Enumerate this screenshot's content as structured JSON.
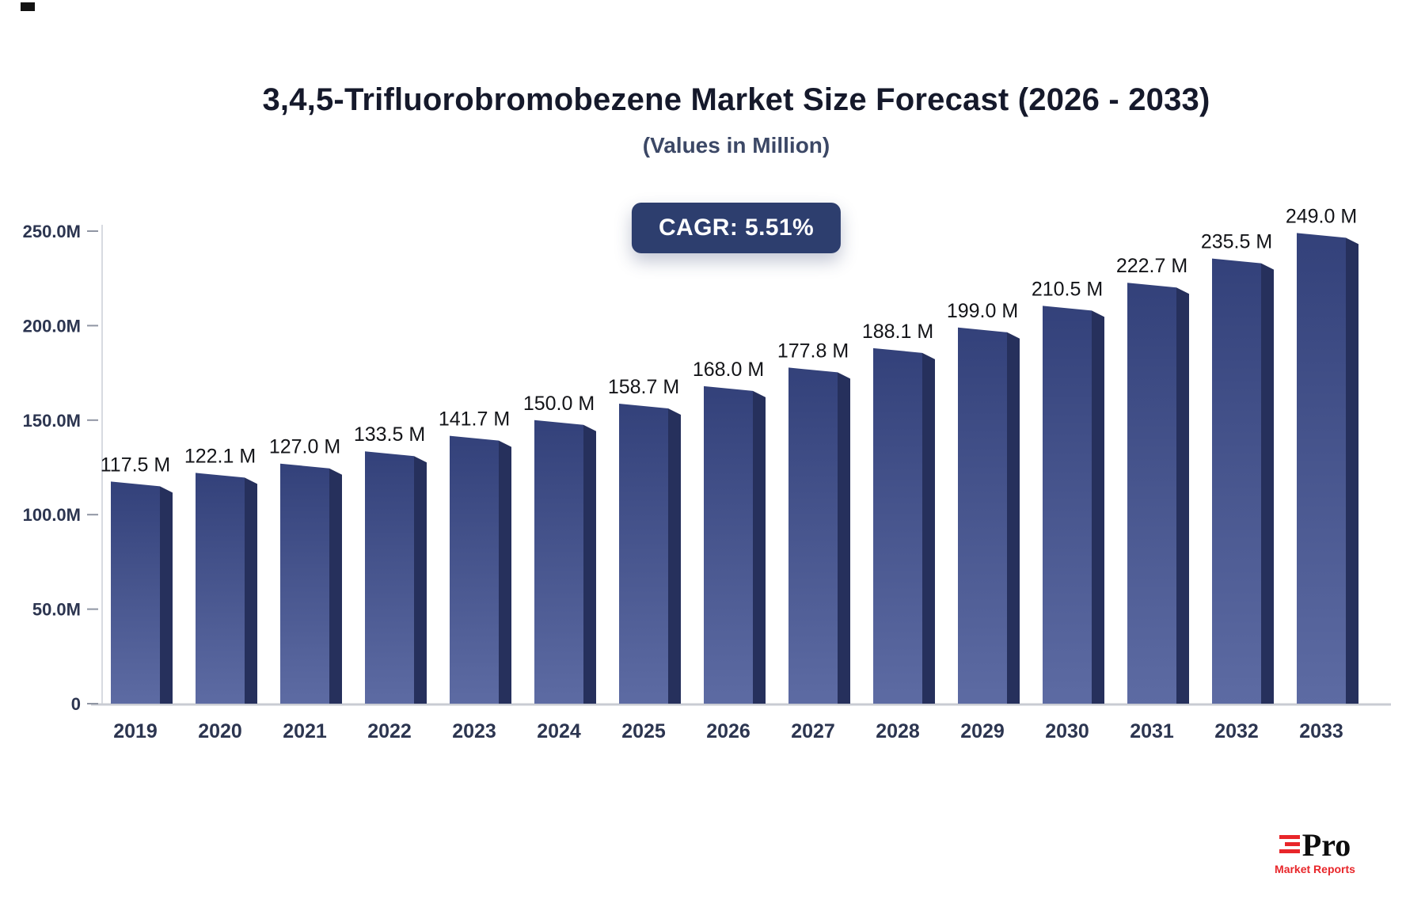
{
  "chart_data": {
    "type": "bar",
    "title": "3,4,5-Trifluorobromobezene Market Size Forecast (2026 - 2033)",
    "subtitle": "(Values in Million)",
    "cagr_label": "CAGR: 5.51%",
    "categories": [
      "2019",
      "2020",
      "2021",
      "2022",
      "2023",
      "2024",
      "2025",
      "2026",
      "2027",
      "2028",
      "2029",
      "2030",
      "2031",
      "2032",
      "2033"
    ],
    "values": [
      117.5,
      122.1,
      127.0,
      133.5,
      141.7,
      150.0,
      158.7,
      168.0,
      177.8,
      188.1,
      199.0,
      210.5,
      222.7,
      235.5,
      249.0
    ],
    "value_labels": [
      "117.5 M",
      "122.1 M",
      "127.0 M",
      "133.5 M",
      "141.7 M",
      "150.0 M",
      "158.7 M",
      "168.0 M",
      "177.8 M",
      "188.1 M",
      "199.0 M",
      "210.5 M",
      "222.7 M",
      "235.5 M",
      "249.0 M"
    ],
    "unit": "Million",
    "ylim": [
      0,
      250
    ],
    "yticks": [
      {
        "value": 250,
        "label": "250.0M"
      },
      {
        "value": 200,
        "label": "200.0M"
      },
      {
        "value": 150,
        "label": "150.0M"
      },
      {
        "value": 100,
        "label": "100.0M"
      },
      {
        "value": 50,
        "label": "50.0M"
      },
      {
        "value": 0,
        "label": "0"
      }
    ],
    "grid": false,
    "legend_position": "none",
    "colors": {
      "bar_front_top": "#33417a",
      "bar_front_bottom": "#5d6ba3",
      "bar_side": "#26305c",
      "axis_line": "#c9ccd3",
      "tick_mark": "#8f95a3",
      "tick_label": "#2c3550",
      "year_label": "#2c3550",
      "value_label": "#131418",
      "badge_bg": "#2d3e6e",
      "badge_text": "#ffffff"
    }
  },
  "branding": {
    "logo_text": "Pro",
    "logo_subtext": "Market Reports",
    "logo_color": "#e8262a"
  }
}
